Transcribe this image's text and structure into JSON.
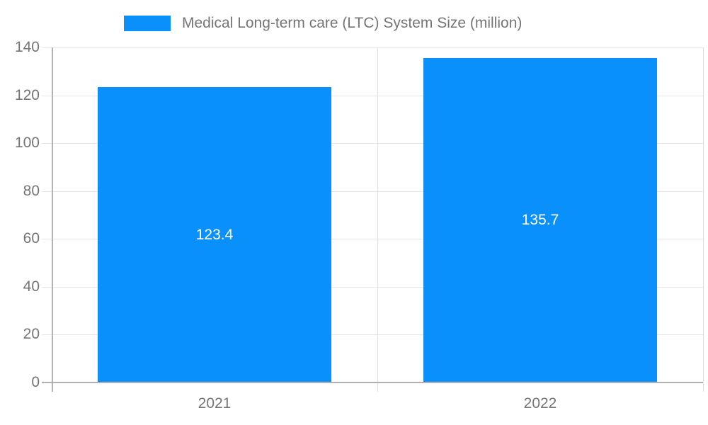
{
  "chart_data": {
    "type": "bar",
    "title": "",
    "legend": "Medical Long-term care (LTC) System Size (million)",
    "legend_position": "top",
    "categories": [
      "2021",
      "2022"
    ],
    "series": [
      {
        "name": "Medical Long-term care (LTC) System Size (million)",
        "values": [
          123.4,
          135.7
        ],
        "value_labels": [
          "123.4",
          "135.7"
        ]
      }
    ],
    "xlabel": "",
    "ylabel": "",
    "ylim": [
      0,
      140
    ],
    "ytick_step": 20,
    "ytick_labels": [
      "0",
      "20",
      "40",
      "60",
      "80",
      "100",
      "120",
      "140"
    ],
    "grid": true,
    "colors": {
      "bar": "#0a90fa",
      "bar_value_text": "#ffffff",
      "axis_text": "#757575",
      "gridline": "#e6e6e6",
      "axis_line": "#b0b0b0",
      "boundary_line": "#e0e0e0"
    }
  }
}
